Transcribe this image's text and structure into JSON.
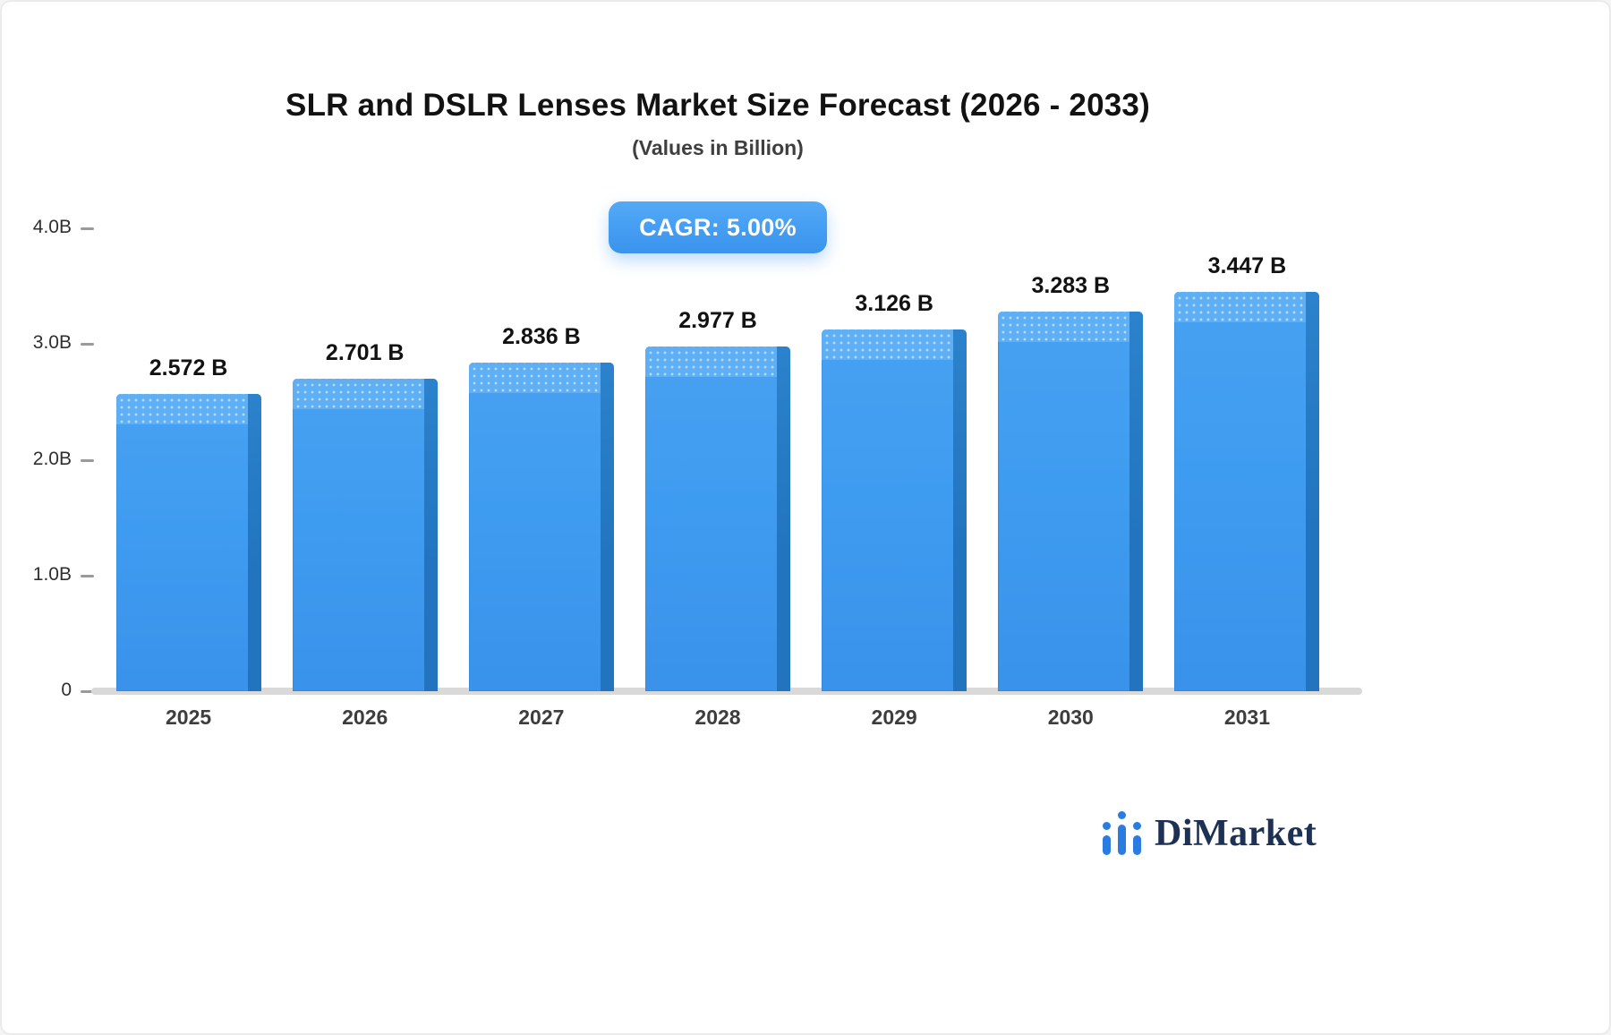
{
  "chart_data": {
    "type": "bar",
    "title": "SLR and DSLR Lenses Market Size Forecast (2026 - 2033)",
    "subtitle": "(Values in Billion)",
    "cagr_label": "CAGR: 5.00%",
    "categories": [
      "2025",
      "2026",
      "2027",
      "2028",
      "2029",
      "2030",
      "2031"
    ],
    "values": [
      2.572,
      2.701,
      2.836,
      2.977,
      3.126,
      3.283,
      3.447
    ],
    "value_labels": [
      "2.572 B",
      "2.701 B",
      "2.836 B",
      "2.977 B",
      "3.126 B",
      "3.283 B",
      "3.447 B"
    ],
    "xlabel": "",
    "ylabel": "",
    "ylim": [
      0,
      4.0
    ],
    "yticks": [
      4.0,
      3.0,
      2.0,
      1.0,
      0
    ],
    "ytick_labels": [
      "4.0B",
      "3.0B",
      "2.0B",
      "1.0B",
      "0"
    ],
    "grid": false,
    "legend_position": "none",
    "colors": {
      "bar": "#3E9CF0",
      "bar_side": "#2274BE",
      "bar_top": "#5FAFF5",
      "badge": "#449DF2",
      "badge_text": "#FFFFFF"
    }
  },
  "branding": {
    "logo_text": "DiMarket",
    "logo_text_color": "#1C3154",
    "logo_icon_color": "#2B7CE0",
    "logo_icon": "mini-bar-chart-icon"
  }
}
